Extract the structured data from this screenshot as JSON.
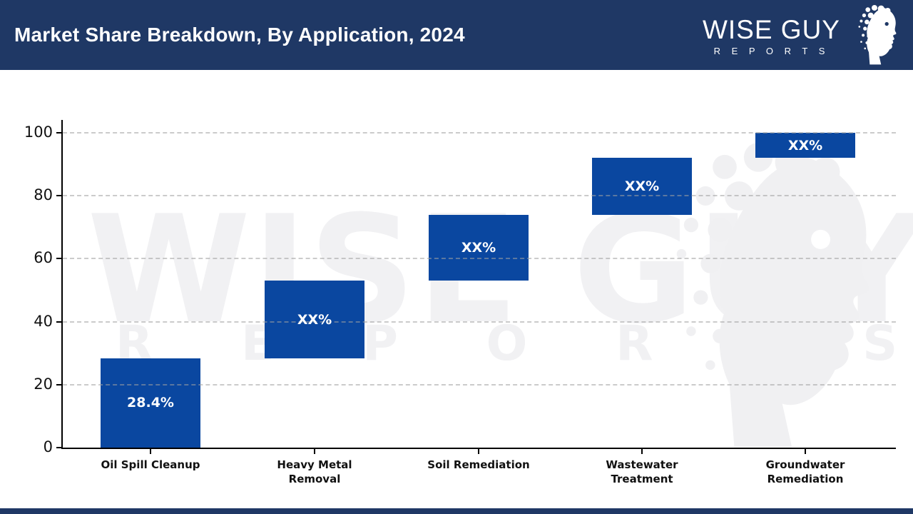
{
  "header": {
    "title": "Market Share Breakdown, By Application, 2024",
    "logo_line1": "WISE GUY",
    "logo_line2": "R E P O R T S"
  },
  "watermark": {
    "line1": "WISE GUY",
    "line2": "R E P O R T S"
  },
  "colors": {
    "header_bg": "#1f3865",
    "bar": "#0a47a0",
    "watermark": "#f1f1f3",
    "grid": "#c8c8c8",
    "bar_label_text": "#ffffff"
  },
  "chart_data": {
    "type": "bar",
    "subtype": "waterfall",
    "title": "Market Share Breakdown, By Application, 2024",
    "categories": [
      "Oil Spill Cleanup",
      "Heavy Metal\nRemoval",
      "Soil Remediation",
      "Wastewater\nTreatment",
      "Groundwater\nRemediation"
    ],
    "segments": [
      {
        "category": "Oil Spill Cleanup",
        "start": 0,
        "end": 28.4,
        "label": "28.4%"
      },
      {
        "category": "Heavy Metal Removal",
        "start": 28.4,
        "end": 53,
        "label": "XX%"
      },
      {
        "category": "Soil Remediation",
        "start": 53,
        "end": 74,
        "label": "XX%"
      },
      {
        "category": "Wastewater Treatment",
        "start": 74,
        "end": 92,
        "label": "XX%"
      },
      {
        "category": "Groundwater Remediation",
        "start": 92,
        "end": 100,
        "label": "XX%"
      }
    ],
    "ylim": [
      0,
      100
    ],
    "yticks": [
      0,
      20,
      40,
      60,
      80,
      100
    ],
    "xlabel": "",
    "ylabel": "",
    "legend": null,
    "grid": "horizontal-dashed"
  }
}
